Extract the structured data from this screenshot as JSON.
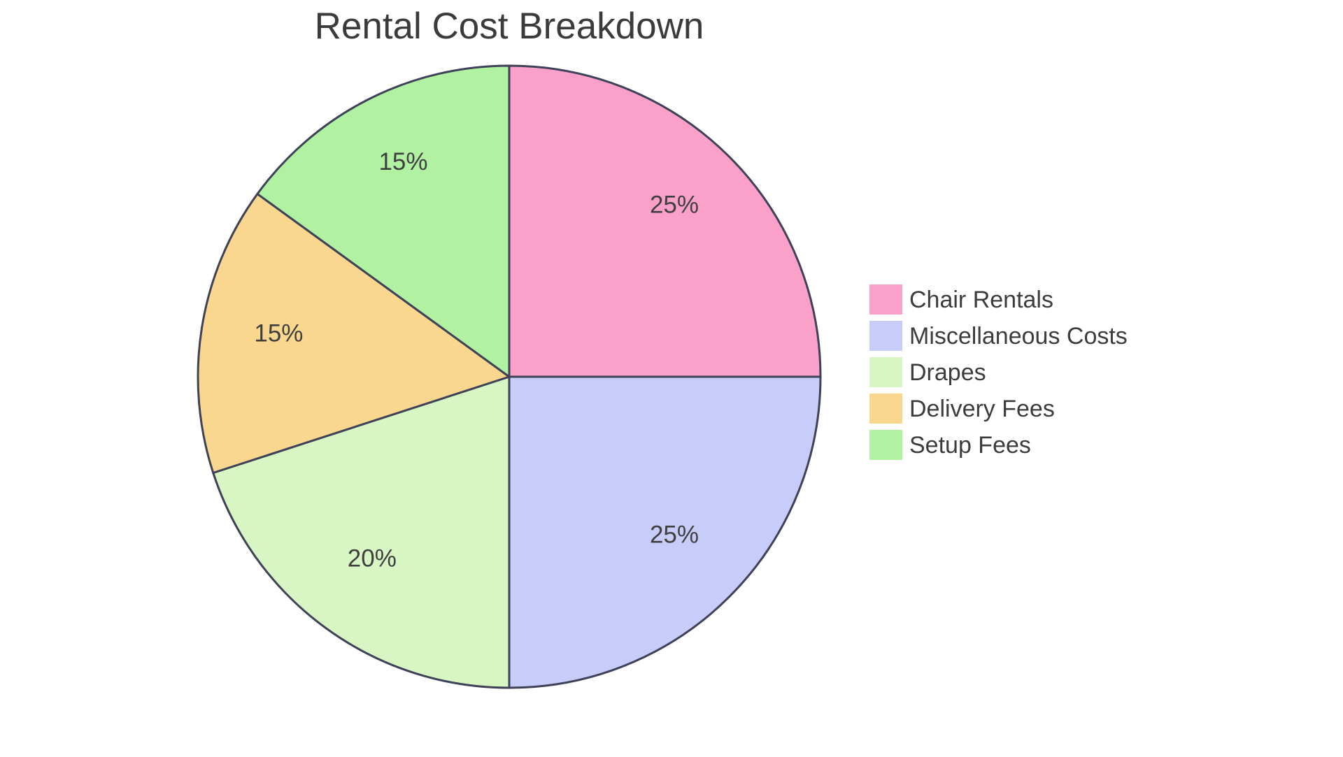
{
  "title": "Rental Cost Breakdown",
  "chart_data": {
    "type": "pie",
    "title": "Rental Cost Breakdown",
    "categories": [
      "Chair Rentals",
      "Miscellaneous Costs",
      "Drapes",
      "Delivery Fees",
      "Setup Fees"
    ],
    "values": [
      25,
      25,
      20,
      15,
      15
    ],
    "slice_labels": [
      "25%",
      "25%",
      "20%",
      "15%",
      "15%"
    ],
    "colors": [
      "#faa0c9",
      "#c8ccf8",
      "#d7f6c4",
      "#fad78e",
      "#b0f2a2"
    ],
    "start_angle": "12-oclock",
    "direction": "clockwise",
    "stroke_color": "#3e4157",
    "title_color": "#3b3b3b",
    "label_color": "#3f3f3f",
    "legend_text_color": "#3c3c3c",
    "legend_position": "right",
    "legend": [
      {
        "label": "Chair Rentals",
        "color": "#faa0c9"
      },
      {
        "label": "Miscellaneous Costs",
        "color": "#c8ccf8"
      },
      {
        "label": "Drapes",
        "color": "#d7f6c4"
      },
      {
        "label": "Delivery Fees",
        "color": "#fad78e"
      },
      {
        "label": "Setup Fees",
        "color": "#b0f2a2"
      }
    ]
  }
}
